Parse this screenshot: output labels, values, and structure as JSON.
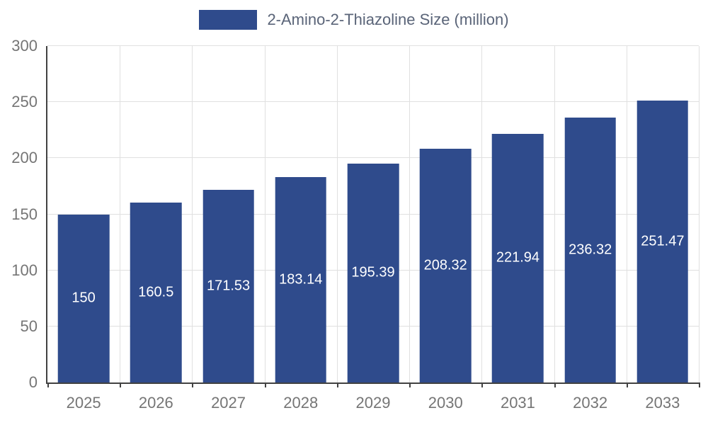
{
  "legend": {
    "label": "2-Amino-2-Thiazoline Size (million)",
    "swatch_color": "#2f4b8c"
  },
  "chart_data": {
    "type": "bar",
    "title": "2-Amino-2-Thiazoline Size (million)",
    "categories": [
      "2025",
      "2026",
      "2027",
      "2028",
      "2029",
      "2030",
      "2031",
      "2032",
      "2033"
    ],
    "values": [
      150,
      160.5,
      171.53,
      183.14,
      195.39,
      208.32,
      221.94,
      236.32,
      251.47
    ],
    "value_labels": [
      "150",
      "160.5",
      "171.53",
      "183.14",
      "195.39",
      "208.32",
      "221.94",
      "236.32",
      "251.47"
    ],
    "xlabel": "",
    "ylabel": "",
    "ylim": [
      0,
      300
    ],
    "yticks": [
      0,
      50,
      100,
      150,
      200,
      250,
      300
    ],
    "bar_color": "#2f4b8c",
    "value_label_color": "#ffffff",
    "grid": true,
    "legend_position": "top"
  }
}
